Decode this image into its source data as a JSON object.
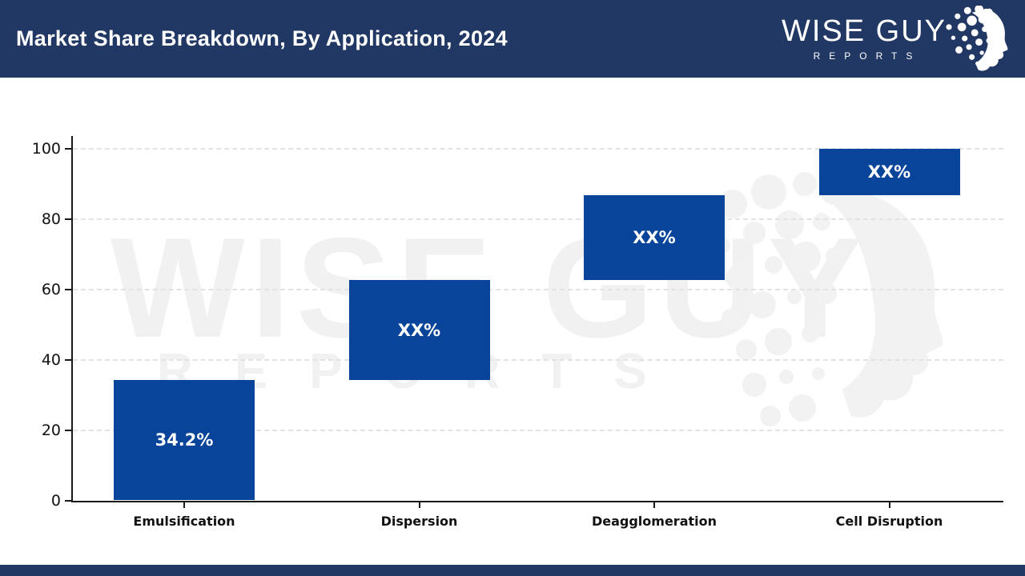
{
  "header": {
    "title": "Market Share Breakdown, By Application, 2024",
    "brand": {
      "line1": "WISE GUY",
      "line2": "REPORTS"
    }
  },
  "watermark": {
    "line1": "WISE GUY",
    "line2": "REPORTS"
  },
  "footer": {},
  "chart_data": {
    "type": "bar",
    "subtype": "waterfall",
    "title": "Market Share Breakdown, By Application, 2024",
    "xlabel": "",
    "ylabel": "",
    "categories": [
      "Emulsification",
      "Dispersion",
      "Deagglomeration",
      "Cell Disruption"
    ],
    "segments": [
      {
        "category": "Emulsification",
        "start": 0,
        "end": 34.2,
        "label": "34.2%"
      },
      {
        "category": "Dispersion",
        "start": 34.2,
        "end": 62.6,
        "label": "XX%"
      },
      {
        "category": "Deagglomeration",
        "start": 62.6,
        "end": 86.8,
        "label": "XX%"
      },
      {
        "category": "Cell Disruption",
        "start": 86.8,
        "end": 100,
        "label": "XX%"
      }
    ],
    "yticks": [
      0,
      20,
      40,
      60,
      80,
      100
    ],
    "ylim": [
      0,
      103.5
    ],
    "grid": "horizontal-dashed",
    "legend": "none",
    "bar_color": "#084499",
    "bar_label_color": "#ffffff"
  },
  "colors": {
    "header_bg": "#213764",
    "footer_bg": "#213764",
    "bar": "#084499",
    "gridline": "#e3e3e3",
    "axis": "#1a1a1a",
    "watermark": "#f1f1f1",
    "title_text": "#ffffff"
  }
}
